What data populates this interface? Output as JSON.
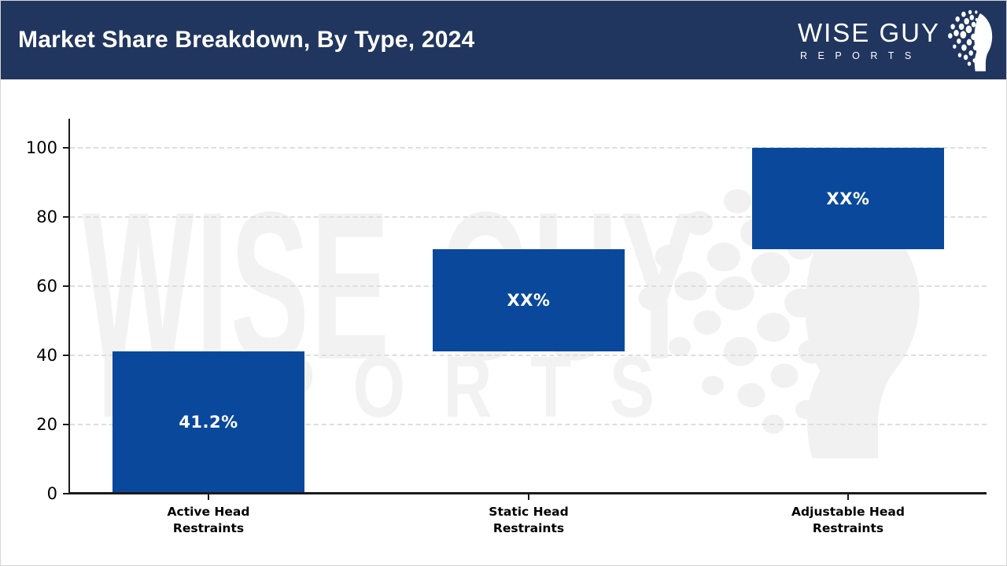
{
  "header": {
    "title": "Market Share Breakdown, By Type, 2024",
    "logo": {
      "name": "Wise Guy Reports logo",
      "line1": "WISE GUY",
      "line2": "REPORTS"
    }
  },
  "watermark": {
    "line1": "WISE GUY",
    "line2": "REPORTS"
  },
  "chart_data": {
    "type": "bar",
    "variant": "floating cumulative segments (waterfall-style market share bars)",
    "title": "Market Share Breakdown, By Type, 2024",
    "categories": [
      "Active Head Restraints",
      "Static Head Restraints",
      "Adjustable Head Restraints"
    ],
    "bars": [
      {
        "category": "Active Head Restraints",
        "category_lines": [
          "Active Head",
          "Restraints"
        ],
        "from": 0,
        "to": 41.2,
        "label": "41.2%"
      },
      {
        "category": "Static Head Restraints",
        "category_lines": [
          "Static Head",
          "Restraints"
        ],
        "from": 41.2,
        "to": 70.6,
        "label": "XX%"
      },
      {
        "category": "Adjustable Head Restraints",
        "category_lines": [
          "Adjustable Head",
          "Restraints"
        ],
        "from": 70.6,
        "to": 100,
        "label": "XX%"
      }
    ],
    "ylim": [
      0,
      100
    ],
    "yticks": [
      0,
      20,
      40,
      60,
      80,
      100
    ],
    "xlabel": "",
    "ylabel": "",
    "grid": {
      "horizontal": true,
      "style": "dashed"
    },
    "legend": null,
    "colors": {
      "bar": "#0A489B",
      "bar_label": "#FFFFFF",
      "header_bg": "#21365E",
      "grid": "#DEDEDE",
      "axis": "#1A1A1A",
      "watermark": "#F2F2F2"
    }
  }
}
